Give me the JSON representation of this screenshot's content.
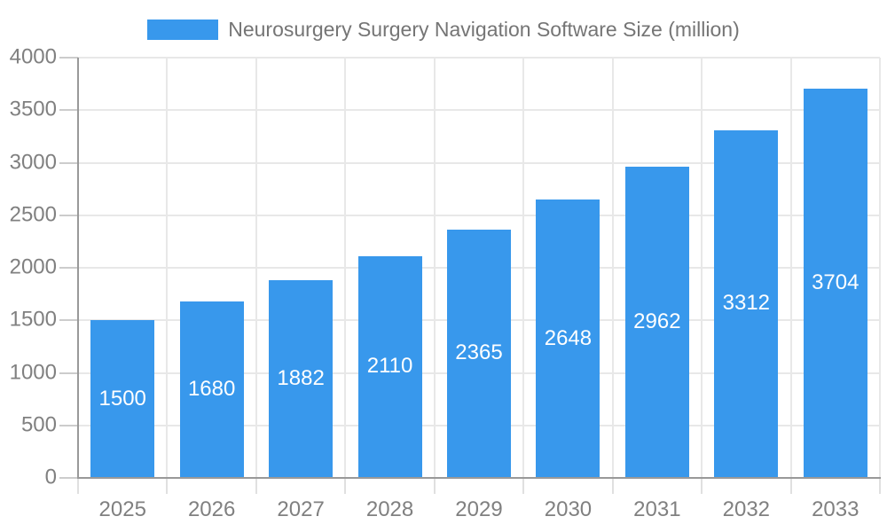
{
  "chart_data": {
    "type": "bar",
    "title": "Neurosurgery Surgery Navigation Software Size (million)",
    "legend_position": "top",
    "categories": [
      "2025",
      "2026",
      "2027",
      "2028",
      "2029",
      "2030",
      "2031",
      "2032",
      "2033"
    ],
    "series": [
      {
        "name": "Neurosurgery Surgery Navigation Software Size (million)",
        "values": [
          1500,
          1680,
          1882,
          2110,
          2365,
          2648,
          2962,
          3312,
          3704
        ]
      }
    ],
    "bar_value_labels": [
      "1500",
      "1680",
      "1882",
      "2110",
      "2365",
      "2648",
      "2962",
      "3312",
      "3704"
    ],
    "xlabel": "",
    "ylabel": "",
    "ylim": [
      0,
      4000
    ],
    "yticks": [
      0,
      500,
      1000,
      1500,
      2000,
      2500,
      3000,
      3500,
      4000
    ],
    "grid": true,
    "colors": {
      "bar": "#3898EC",
      "bar_label": "#FFFFFF",
      "grid": "#E8E8E8",
      "axis": "#999999",
      "y_tick": "#CCCCCC",
      "x_tick": "#E0E0E0",
      "axis_label": "#808080",
      "title": "#757575",
      "background": "#FFFFFF"
    }
  }
}
